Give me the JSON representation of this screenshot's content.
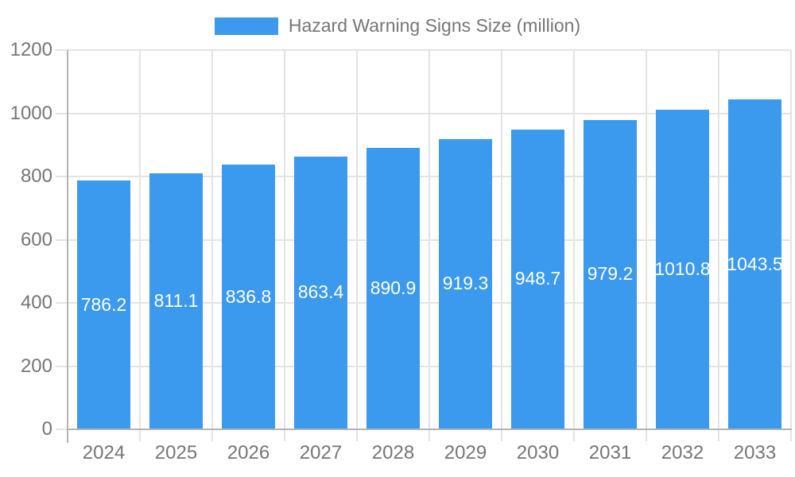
{
  "colors": {
    "bar": "#3B99EE",
    "axis_line": "#b3b3b3",
    "grid_line": "#e3e3e3",
    "axis_text": "#757575",
    "value_text": "#ffffff"
  },
  "chart_data": {
    "type": "bar",
    "title": "Hazard Warning Signs Size (million)",
    "categories": [
      "2024",
      "2025",
      "2026",
      "2027",
      "2028",
      "2029",
      "2030",
      "2031",
      "2032",
      "2033"
    ],
    "values": [
      786.2,
      811.1,
      836.8,
      863.4,
      890.9,
      919.3,
      948.7,
      979.2,
      1010.8,
      1043.5
    ],
    "value_labels": [
      "786.2",
      "811.1",
      "836.8",
      "863.4",
      "890.9",
      "919.3",
      "948.7",
      "979.2",
      "1010.8",
      "1043.5"
    ],
    "xlabel": "",
    "ylabel": "",
    "ylim": [
      0,
      1200
    ],
    "ytick_interval": 200,
    "yticks": [
      "0",
      "200",
      "400",
      "600",
      "800",
      "1000",
      "1200"
    ],
    "grid": true,
    "legend_position": "top"
  }
}
